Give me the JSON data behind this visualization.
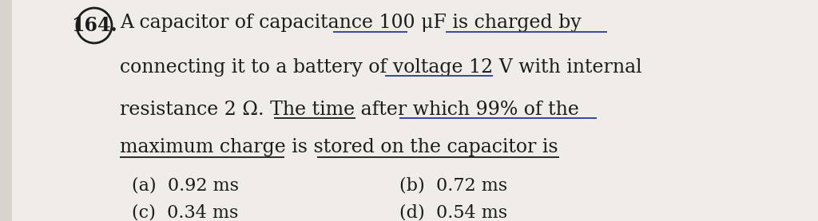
{
  "background_color": "#d8d4cd",
  "question_number": "164.",
  "line1": "A capacitor of capacitance 100 μF is charged by",
  "line2": "connecting it to a battery of voltage 12 V with internal",
  "line3": "resistance 2 Ω. The time after which 99% of the",
  "line4": "maximum charge is stored on the capacitor is",
  "option_a": "(a)  0.92 ms",
  "option_b": "(b)  0.72 ms",
  "option_c": "(c)  0.34 ms",
  "option_d": "(d)  0.54 ms",
  "text_color": "#1c1c1c",
  "font_size_main": 17,
  "font_size_options": 16,
  "circle_color": "#1c1c1c",
  "underline_color_blue": "#3344aa",
  "underline_color_dark": "#2a2a2a"
}
